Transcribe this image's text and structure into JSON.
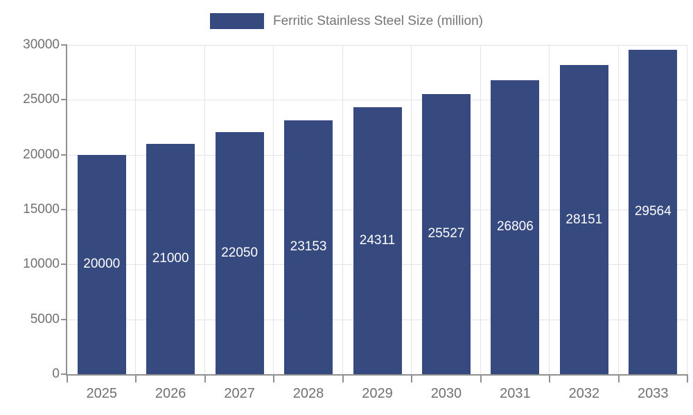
{
  "legend": {
    "label": "Ferritic Stainless Steel Size (million)"
  },
  "chart_data": {
    "type": "bar",
    "title": "Ferritic Stainless Steel Size (million)",
    "categories": [
      "2025",
      "2026",
      "2027",
      "2028",
      "2029",
      "2030",
      "2031",
      "2032",
      "2033"
    ],
    "values": [
      20000,
      21000,
      22050,
      23153,
      24311,
      25527,
      26806,
      28151,
      29564
    ],
    "value_labels": [
      "20000",
      "21000",
      "22050",
      "23153",
      "24311",
      "25527",
      "26806",
      "28151",
      "29564"
    ],
    "xlabel": "",
    "ylabel": "",
    "ylim": [
      0,
      30000
    ],
    "y_ticks": [
      0,
      5000,
      10000,
      15000,
      20000,
      25000,
      30000
    ],
    "y_tick_labels": [
      "0",
      "5000",
      "10000",
      "15000",
      "20000",
      "25000",
      "30000"
    ],
    "grid": true,
    "legend_position": "top-center",
    "value_label_position": "inside-center",
    "colors": {
      "bar": "#364A80",
      "grid": "#E2E2E8",
      "axis": "#909090",
      "tick_label": "#707070",
      "legend_text": "#757575",
      "value_label": "#FFFFFF",
      "background": "#FFFFFF"
    }
  }
}
